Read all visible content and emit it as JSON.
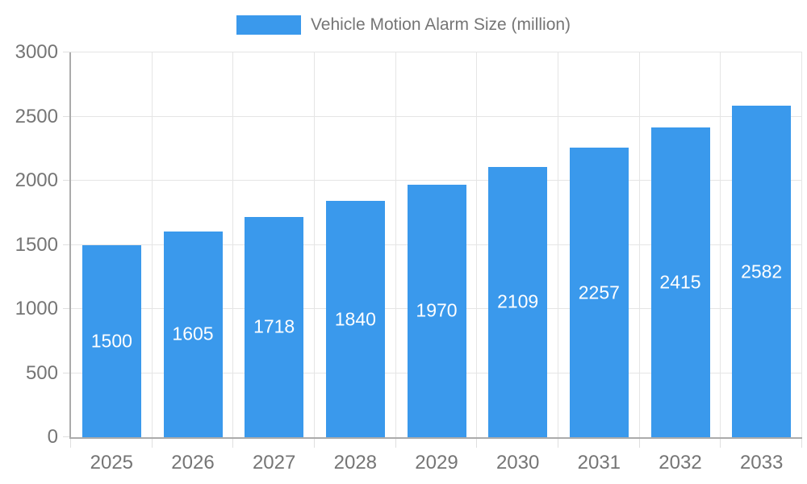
{
  "legend": {
    "items": [
      {
        "label": "Vehicle Motion Alarm Size (million)",
        "color": "#3A99EC"
      }
    ]
  },
  "chart_data": {
    "type": "bar",
    "title": "Vehicle Motion Alarm Size (million)",
    "categories": [
      "2025",
      "2026",
      "2027",
      "2028",
      "2029",
      "2030",
      "2031",
      "2032",
      "2033"
    ],
    "values": [
      1500,
      1605,
      1718,
      1840,
      1970,
      2109,
      2257,
      2415,
      2582
    ],
    "series_name": "Vehicle Motion Alarm Size (million)",
    "xlabel": "",
    "ylabel": "",
    "ylim": [
      0,
      3000
    ],
    "yticks": [
      0,
      500,
      1000,
      1500,
      2000,
      2500,
      3000
    ],
    "grid": true,
    "legend_position": "top",
    "value_labels": "inside-center"
  },
  "colors": {
    "bar": "#3A99EC",
    "grid": "#E5E5E5",
    "tick": "#DFDFDF",
    "axis": "#ABABAB",
    "text": "#757575",
    "value_label": "#FFFFFF",
    "background": "#FFFFFF"
  }
}
